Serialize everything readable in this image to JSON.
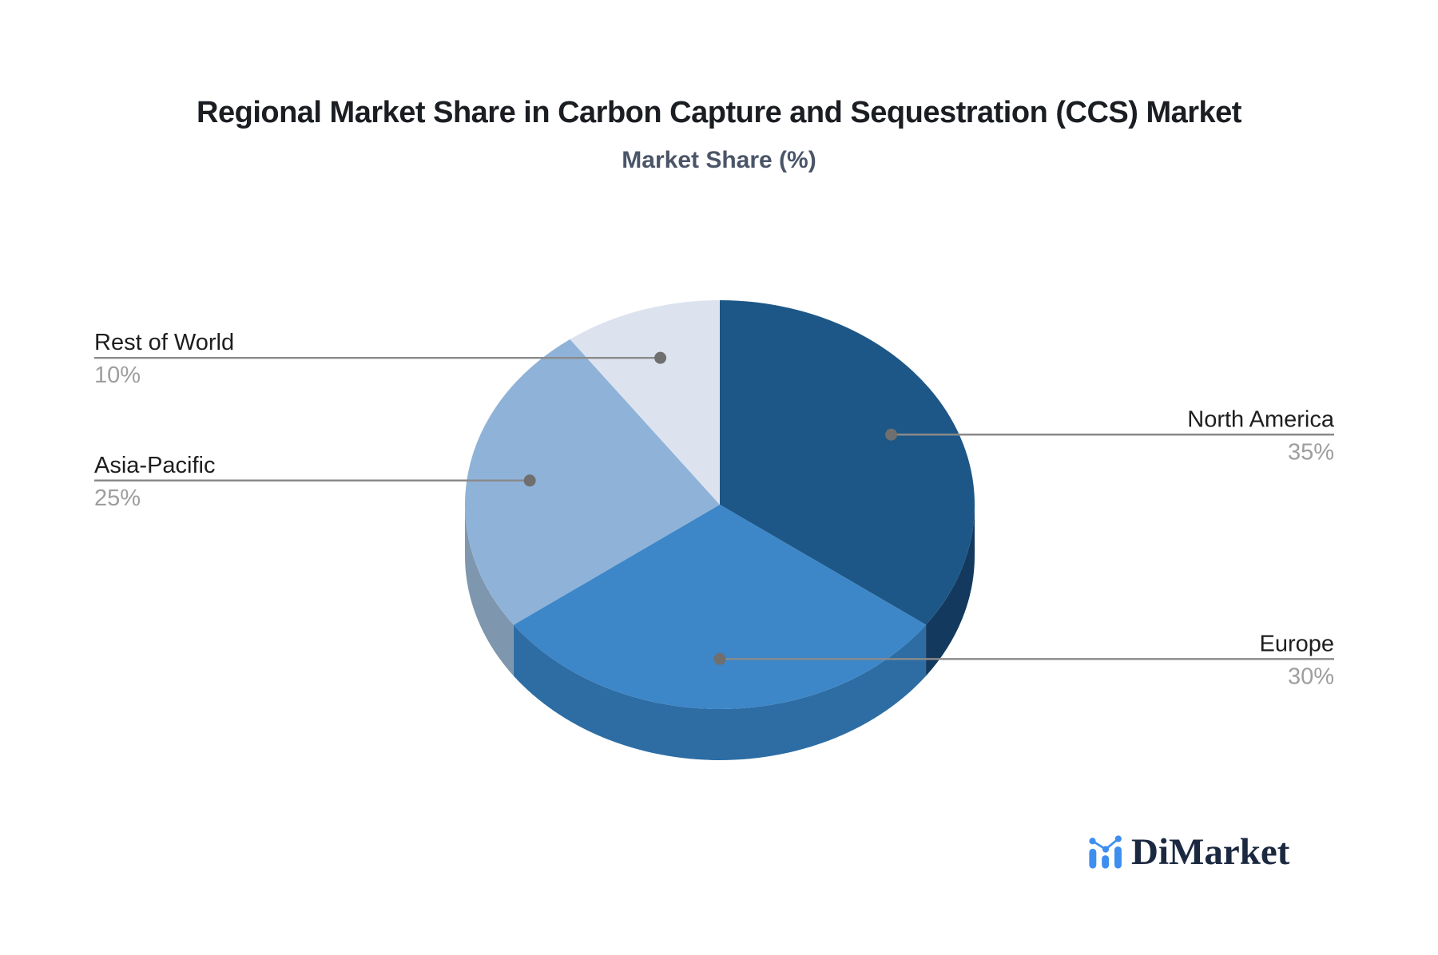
{
  "header": {
    "title": "Regional Market Share in Carbon Capture and Sequestration (CCS) Market",
    "subtitle": "Market Share (%)"
  },
  "chart_data": {
    "type": "pie",
    "style": "3d",
    "title": "Regional Market Share in Carbon Capture and Sequestration (CCS) Market",
    "subtitle": "Market Share (%)",
    "unit": "%",
    "start_angle_deg": 0,
    "direction": "clockwise",
    "categories": [
      "North America",
      "Europe",
      "Asia-Pacific",
      "Rest of World"
    ],
    "values": [
      35,
      30,
      25,
      10
    ],
    "slices": [
      {
        "label": "North America",
        "value": 35,
        "value_label": "35%",
        "color_top": "#1D5787",
        "color_side": "#14395E",
        "callout_side": "right"
      },
      {
        "label": "Europe",
        "value": 30,
        "value_label": "30%",
        "color_top": "#3D87C8",
        "color_side": "#2D6DA4",
        "callout_side": "right"
      },
      {
        "label": "Asia-Pacific",
        "value": 25,
        "value_label": "25%",
        "color_top": "#8FB2D8",
        "color_side": "#7E97AE",
        "callout_side": "left"
      },
      {
        "label": "Rest of World",
        "value": 10,
        "value_label": "10%",
        "color_top": "#DCE3EF",
        "color_side": "#C3CDDE",
        "callout_side": "left"
      }
    ],
    "label_color": "#1E1E1E",
    "value_color": "#9E9E9E",
    "callout_line_color": "#8A8A8A",
    "callout_dot_color": "#6F6F6F",
    "legend": "none",
    "grid": "off"
  },
  "logo": {
    "name": "DiMarket",
    "text_color": "#1b2940",
    "icon_color": "#3E8EF0"
  }
}
